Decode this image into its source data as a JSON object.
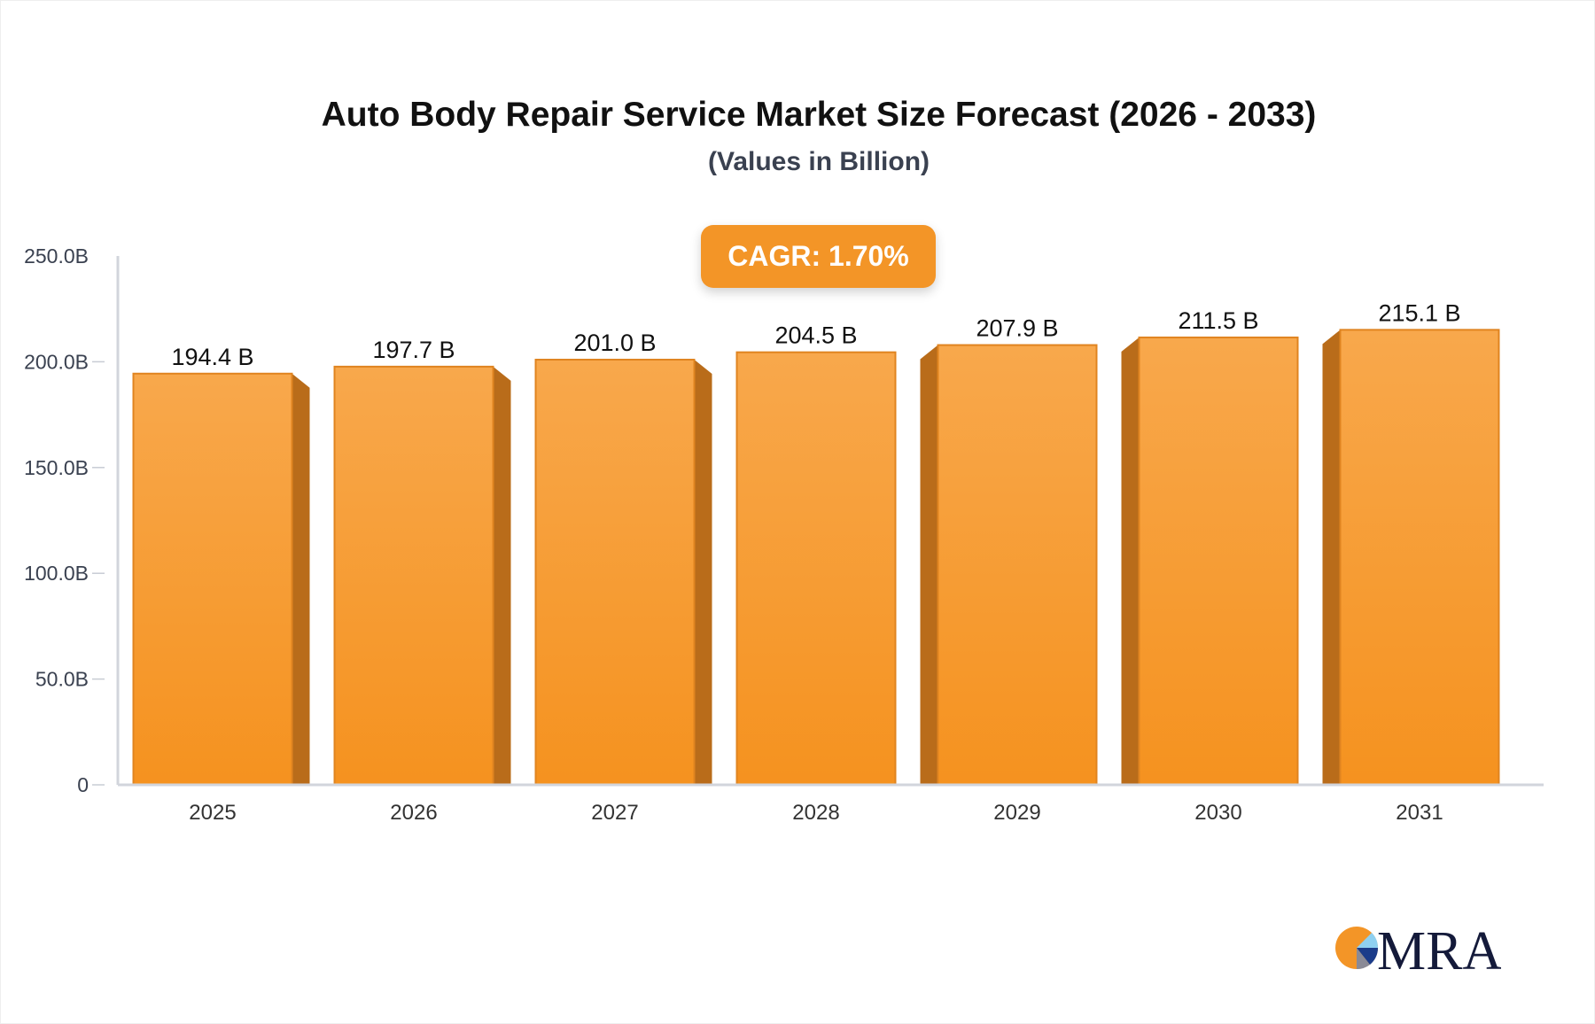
{
  "chart_data": {
    "type": "bar",
    "title": "Auto Body Repair Service Market Size Forecast (2026 - 2033)",
    "subtitle": "(Values in Billion)",
    "categories": [
      "2025",
      "2026",
      "2027",
      "2028",
      "2029",
      "2030",
      "2031"
    ],
    "values": [
      194.4,
      197.7,
      201.0,
      204.5,
      207.9,
      211.5,
      215.1
    ],
    "value_labels": [
      "194.4 B",
      "197.7 B",
      "201.0 B",
      "204.5 B",
      "207.9 B",
      "211.5 B",
      "215.1 B"
    ],
    "y_ticks": [
      0,
      50,
      100,
      150,
      200,
      250
    ],
    "y_tick_labels": [
      "0",
      "50.0B",
      "100.0B",
      "150.0B",
      "200.0B",
      "250.0B"
    ],
    "ylim": [
      0,
      250
    ],
    "grid": false,
    "bar_color": "#f7a040",
    "bar_side_color": "#b96c1a",
    "annotation": "CAGR: 1.70%",
    "annotation_color": "#f39527"
  },
  "logo": {
    "text": "MRA"
  }
}
